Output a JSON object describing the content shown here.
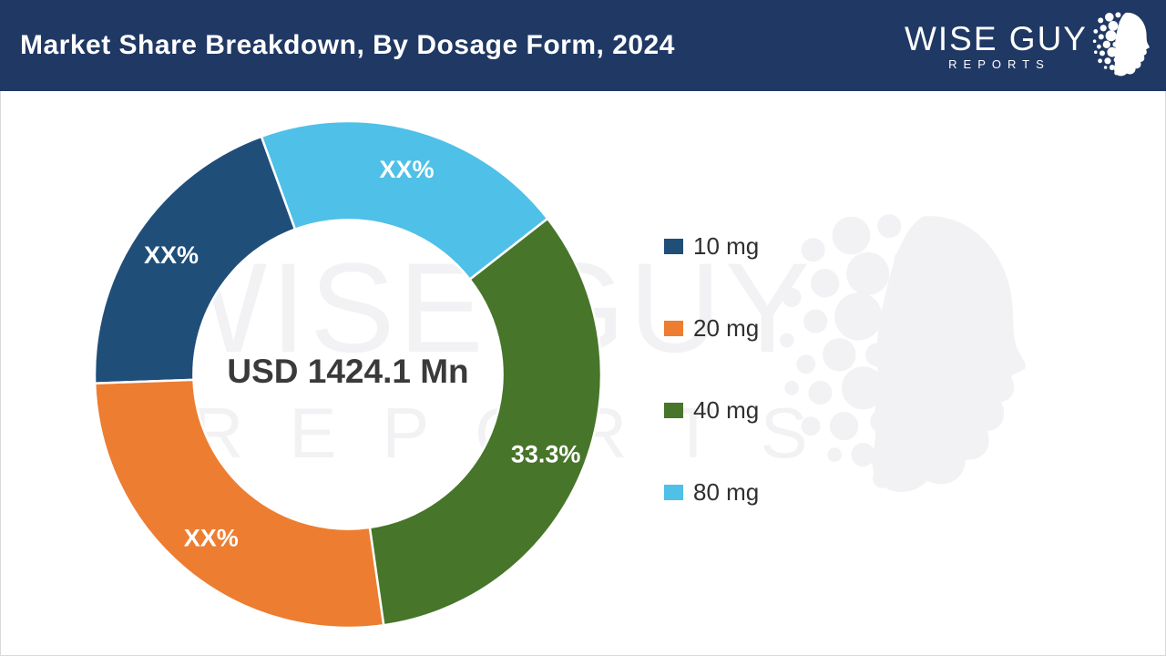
{
  "header": {
    "title": "Market Share Breakdown, By Dosage Form, 2024",
    "logo": {
      "name": "WISE GUY",
      "sub": "REPORTS"
    }
  },
  "watermark": {
    "line1": "WISE GUY",
    "line2": "REPORTS"
  },
  "colors": {
    "header_bg": "#203864",
    "title_text": "#ffffff",
    "center_text": "#3a3a3a",
    "watermark": "#f2f2f4",
    "segment_10mg": "#1f4e79",
    "segment_20mg": "#ed7d31",
    "segment_40mg": "#47752a",
    "segment_80mg": "#4fc0e8"
  },
  "chart_data": {
    "type": "pie",
    "subtype": "donut",
    "title": "Market Share Breakdown, By Dosage Form, 2024",
    "center_label": "USD 1424.1 Mn",
    "start_angle_deg": 110,
    "direction": "counterclockwise",
    "legend_position": "right",
    "inner_radius_ratio": 0.61,
    "segments": [
      {
        "label": "10 mg",
        "value_pct": 20.0,
        "display_label": "XX%",
        "color": "#1f4e79"
      },
      {
        "label": "20 mg",
        "value_pct": 26.7,
        "display_label": "XX%",
        "color": "#ed7d31"
      },
      {
        "label": "40 mg",
        "value_pct": 33.3,
        "display_label": "33.3%",
        "color": "#47752a"
      },
      {
        "label": "80 mg",
        "value_pct": 20.0,
        "display_label": "XX%",
        "color": "#4fc0e8"
      }
    ]
  }
}
